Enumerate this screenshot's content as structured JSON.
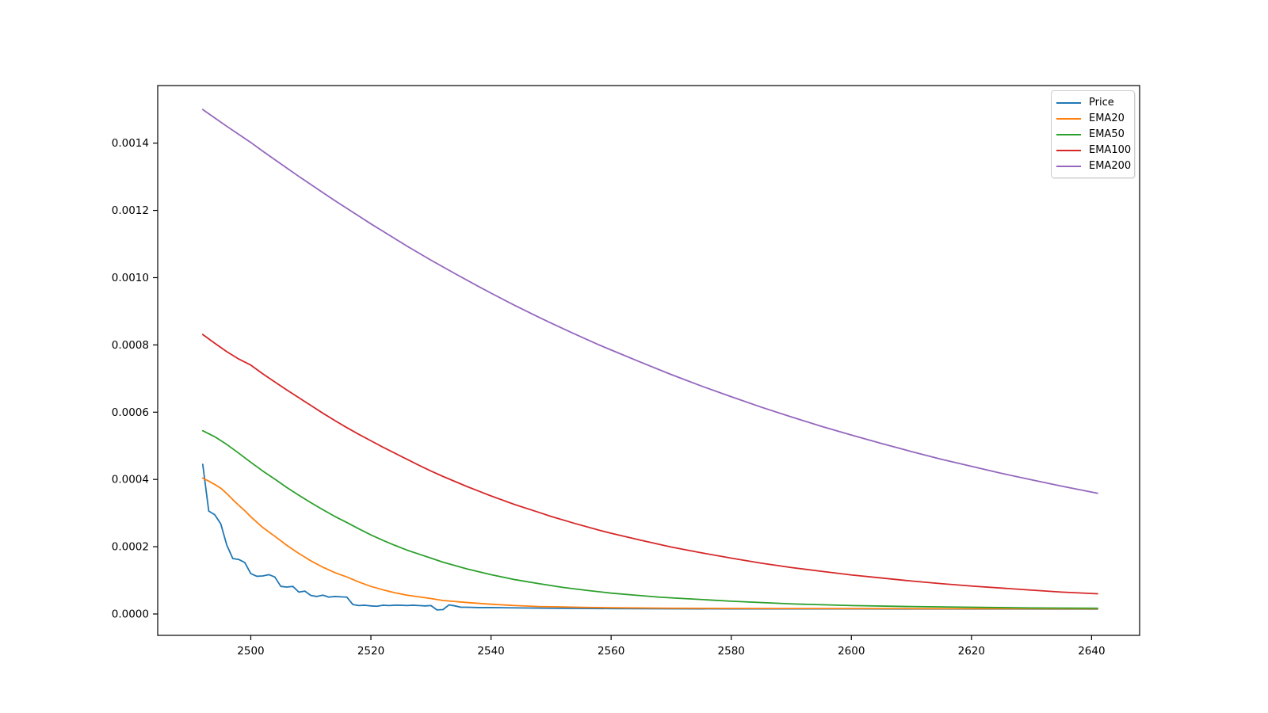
{
  "figure": {
    "background": "#ffffff",
    "axes_edge_color": "#000000",
    "tick_color": "#000000",
    "tick_label_color": "#000000"
  },
  "legend": {
    "position": "upper-right",
    "border_color": "#cccccc"
  },
  "chart_data": {
    "type": "line",
    "title": "",
    "xlabel": "",
    "ylabel": "",
    "grid": false,
    "legend_position": "upper right",
    "xlim": [
      2484.5,
      2648.0
    ],
    "ylim": [
      -6.36e-05,
      0.0015712
    ],
    "xticks": [
      2500,
      2520,
      2540,
      2560,
      2580,
      2600,
      2620,
      2640
    ],
    "xtick_labels": [
      "2500",
      "2520",
      "2540",
      "2560",
      "2580",
      "2600",
      "2620",
      "2640"
    ],
    "ytick_values": [
      0.0,
      0.0002,
      0.0004,
      0.0006,
      0.0008,
      0.001,
      0.0012,
      0.0014
    ],
    "ytick_labels": [
      "0.0000",
      "0.0002",
      "0.0004",
      "0.0006",
      "0.0008",
      "0.0010",
      "0.0012",
      "0.0014"
    ],
    "series": [
      {
        "name": "Price",
        "color": "#1f77b4",
        "points": [
          [
            2492,
            0.000445
          ],
          [
            2493,
            0.000306
          ],
          [
            2494,
            0.000295
          ],
          [
            2495,
            0.000268
          ],
          [
            2496,
            0.000205
          ],
          [
            2497,
            0.000165
          ],
          [
            2498,
            0.000162
          ],
          [
            2499,
            0.000153
          ],
          [
            2500,
            0.00012
          ],
          [
            2501,
            0.000112
          ],
          [
            2502,
            0.000113
          ],
          [
            2503,
            0.000117
          ],
          [
            2504,
            0.00011
          ],
          [
            2505,
            8.2e-05
          ],
          [
            2506,
            8e-05
          ],
          [
            2507,
            8.2e-05
          ],
          [
            2508,
            6.5e-05
          ],
          [
            2509,
            6.8e-05
          ],
          [
            2510,
            5.5e-05
          ],
          [
            2511,
            5.2e-05
          ],
          [
            2512,
            5.6e-05
          ],
          [
            2513,
            5e-05
          ],
          [
            2514,
            5.2e-05
          ],
          [
            2515,
            5.1e-05
          ],
          [
            2516,
            5e-05
          ],
          [
            2517,
            2.8e-05
          ],
          [
            2518,
            2.5e-05
          ],
          [
            2519,
            2.6e-05
          ],
          [
            2520,
            2.4e-05
          ],
          [
            2521,
            2.3e-05
          ],
          [
            2522,
            2.6e-05
          ],
          [
            2523,
            2.5e-05
          ],
          [
            2524,
            2.6e-05
          ],
          [
            2525,
            2.6e-05
          ],
          [
            2526,
            2.5e-05
          ],
          [
            2527,
            2.6e-05
          ],
          [
            2528,
            2.5e-05
          ],
          [
            2529,
            2.4e-05
          ],
          [
            2530,
            2.5e-05
          ],
          [
            2531,
            1.2e-05
          ],
          [
            2532,
            1.3e-05
          ],
          [
            2533,
            2.7e-05
          ],
          [
            2534,
            2.4e-05
          ],
          [
            2535,
            2e-05
          ],
          [
            2536,
            2e-05
          ],
          [
            2538,
            1.9e-05
          ],
          [
            2540,
            1.9e-05
          ],
          [
            2545,
            1.8e-05
          ],
          [
            2550,
            1.7e-05
          ],
          [
            2560,
            1.6e-05
          ],
          [
            2570,
            1.55e-05
          ],
          [
            2580,
            1.5e-05
          ],
          [
            2600,
            1.5e-05
          ],
          [
            2620,
            1.48e-05
          ],
          [
            2641,
            1.45e-05
          ]
        ]
      },
      {
        "name": "EMA20",
        "color": "#ff7f0e",
        "points": [
          [
            2492,
            0.000404
          ],
          [
            2493,
            0.000395
          ],
          [
            2494,
            0.000385
          ],
          [
            2495,
            0.000374
          ],
          [
            2496,
            0.000358
          ],
          [
            2497,
            0.00034
          ],
          [
            2498,
            0.000323
          ],
          [
            2499,
            0.000307
          ],
          [
            2500,
            0.000289
          ],
          [
            2502,
            0.000257
          ],
          [
            2504,
            0.000231
          ],
          [
            2506,
            0.000204
          ],
          [
            2508,
            0.00018
          ],
          [
            2510,
            0.000158
          ],
          [
            2512,
            0.000139
          ],
          [
            2514,
            0.000123
          ],
          [
            2516,
            0.00011
          ],
          [
            2518,
            9.5e-05
          ],
          [
            2520,
            8.2e-05
          ],
          [
            2522,
            7.2e-05
          ],
          [
            2524,
            6.3e-05
          ],
          [
            2526,
            5.6e-05
          ],
          [
            2528,
            5.1e-05
          ],
          [
            2530,
            4.6e-05
          ],
          [
            2532,
            4e-05
          ],
          [
            2534,
            3.7e-05
          ],
          [
            2536,
            3.4e-05
          ],
          [
            2540,
            2.9e-05
          ],
          [
            2544,
            2.5e-05
          ],
          [
            2548,
            2.2e-05
          ],
          [
            2552,
            2.1e-05
          ],
          [
            2556,
            1.95e-05
          ],
          [
            2560,
            1.85e-05
          ],
          [
            2570,
            1.7e-05
          ],
          [
            2580,
            1.65e-05
          ],
          [
            2590,
            1.62e-05
          ],
          [
            2600,
            1.6e-05
          ],
          [
            2610,
            1.58e-05
          ],
          [
            2620,
            1.57e-05
          ],
          [
            2630,
            1.56e-05
          ],
          [
            2641,
            1.55e-05
          ]
        ]
      },
      {
        "name": "EMA50",
        "color": "#2ca02c",
        "points": [
          [
            2492,
            0.000545
          ],
          [
            2494,
            0.000527
          ],
          [
            2496,
            0.000504
          ],
          [
            2498,
            0.000478
          ],
          [
            2500,
            0.000451
          ],
          [
            2502,
            0.000425
          ],
          [
            2504,
            0.000401
          ],
          [
            2506,
            0.000376
          ],
          [
            2508,
            0.000353
          ],
          [
            2510,
            0.000331
          ],
          [
            2512,
            0.00031
          ],
          [
            2514,
            0.00029
          ],
          [
            2516,
            0.000272
          ],
          [
            2518,
            0.000253
          ],
          [
            2520,
            0.000235
          ],
          [
            2522,
            0.000219
          ],
          [
            2524,
            0.000204
          ],
          [
            2526,
            0.00019
          ],
          [
            2528,
            0.000178
          ],
          [
            2530,
            0.000166
          ],
          [
            2532,
            0.000154
          ],
          [
            2534,
            0.000144
          ],
          [
            2536,
            0.000134
          ],
          [
            2540,
            0.000117
          ],
          [
            2544,
            0.000102
          ],
          [
            2548,
            9e-05
          ],
          [
            2552,
            7.9e-05
          ],
          [
            2556,
            7e-05
          ],
          [
            2560,
            6.2e-05
          ],
          [
            2564,
            5.6e-05
          ],
          [
            2568,
            5e-05
          ],
          [
            2572,
            4.6e-05
          ],
          [
            2576,
            4.2e-05
          ],
          [
            2580,
            3.8e-05
          ],
          [
            2590,
            3e-05
          ],
          [
            2600,
            2.5e-05
          ],
          [
            2610,
            2.2e-05
          ],
          [
            2620,
            2e-05
          ],
          [
            2630,
            1.8e-05
          ],
          [
            2641,
            1.7e-05
          ]
        ]
      },
      {
        "name": "EMA100",
        "color": "#d62728",
        "points": [
          [
            2492,
            0.000831
          ],
          [
            2494,
            0.000805
          ],
          [
            2496,
            0.00078
          ],
          [
            2498,
            0.000758
          ],
          [
            2500,
            0.00074
          ],
          [
            2502,
            0.000714
          ],
          [
            2504,
            0.00069
          ],
          [
            2506,
            0.000666
          ],
          [
            2508,
            0.000643
          ],
          [
            2510,
            0.00062
          ],
          [
            2512,
            0.000597
          ],
          [
            2514,
            0.000575
          ],
          [
            2516,
            0.000554
          ],
          [
            2518,
            0.000534
          ],
          [
            2520,
            0.000515
          ],
          [
            2522,
            0.000496
          ],
          [
            2524,
            0.000478
          ],
          [
            2526,
            0.00046
          ],
          [
            2528,
            0.000442
          ],
          [
            2530,
            0.000425
          ],
          [
            2532,
            0.000409
          ],
          [
            2534,
            0.000394
          ],
          [
            2536,
            0.000379
          ],
          [
            2538,
            0.000365
          ],
          [
            2540,
            0.000351
          ],
          [
            2544,
            0.000325
          ],
          [
            2548,
            0.000302
          ],
          [
            2550,
            0.00029
          ],
          [
            2554,
            0.000269
          ],
          [
            2558,
            0.000249
          ],
          [
            2560,
            0.00024
          ],
          [
            2565,
            0.000219
          ],
          [
            2570,
            0.000199
          ],
          [
            2575,
            0.000182
          ],
          [
            2580,
            0.000166
          ],
          [
            2585,
            0.000151
          ],
          [
            2590,
            0.000138
          ],
          [
            2595,
            0.000127
          ],
          [
            2600,
            0.000116
          ],
          [
            2605,
            0.000107
          ],
          [
            2610,
            9.8e-05
          ],
          [
            2615,
            9e-05
          ],
          [
            2620,
            8.3e-05
          ],
          [
            2625,
            7.7e-05
          ],
          [
            2630,
            7.1e-05
          ],
          [
            2635,
            6.5e-05
          ],
          [
            2641,
            6e-05
          ]
        ]
      },
      {
        "name": "EMA200",
        "color": "#9467bd",
        "points": [
          [
            2492,
            0.0015
          ],
          [
            2494,
            0.001475
          ],
          [
            2496,
            0.00145
          ],
          [
            2498,
            0.001426
          ],
          [
            2500,
            0.001402
          ],
          [
            2502,
            0.001376
          ],
          [
            2504,
            0.001351
          ],
          [
            2506,
            0.001326
          ],
          [
            2508,
            0.001301
          ],
          [
            2510,
            0.001277
          ],
          [
            2512,
            0.001253
          ],
          [
            2514,
            0.001229
          ],
          [
            2516,
            0.001206
          ],
          [
            2518,
            0.001183
          ],
          [
            2520,
            0.00116
          ],
          [
            2522,
            0.001138
          ],
          [
            2524,
            0.001116
          ],
          [
            2526,
            0.001094
          ],
          [
            2528,
            0.001073
          ],
          [
            2530,
            0.001052
          ],
          [
            2534,
            0.001012
          ],
          [
            2538,
            0.000973
          ],
          [
            2540,
            0.000954
          ],
          [
            2544,
            0.000917
          ],
          [
            2548,
            0.000882
          ],
          [
            2550,
            0.000865
          ],
          [
            2554,
            0.000832
          ],
          [
            2558,
            0.0008
          ],
          [
            2560,
            0.000785
          ],
          [
            2565,
            0.000748
          ],
          [
            2570,
            0.000712
          ],
          [
            2575,
            0.000678
          ],
          [
            2580,
            0.000646
          ],
          [
            2585,
            0.000615
          ],
          [
            2590,
            0.000586
          ],
          [
            2595,
            0.000558
          ],
          [
            2600,
            0.000532
          ],
          [
            2605,
            0.000507
          ],
          [
            2610,
            0.000483
          ],
          [
            2615,
            0.00046
          ],
          [
            2620,
            0.000439
          ],
          [
            2625,
            0.000418
          ],
          [
            2630,
            0.000399
          ],
          [
            2635,
            0.00038
          ],
          [
            2641,
            0.000359
          ]
        ]
      }
    ]
  }
}
